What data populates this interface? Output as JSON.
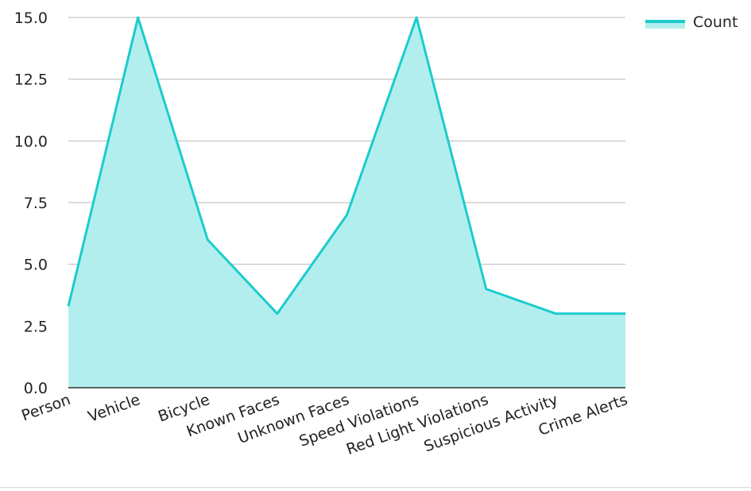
{
  "chart_data": {
    "type": "area",
    "categories": [
      "Person",
      "Vehicle",
      "Bicycle",
      "Known Faces",
      "Unknown Faces",
      "Speed Violations",
      "Red Light Violations",
      "Suspicious Activity",
      "Crime Alerts"
    ],
    "series": [
      {
        "name": "Count",
        "values": [
          3.3,
          15,
          6,
          3,
          7,
          15,
          4,
          3,
          3
        ]
      }
    ],
    "ylim": [
      0,
      15
    ],
    "yticks": [
      "0.0",
      "2.5",
      "5.0",
      "7.5",
      "10.0",
      "12.5",
      "15.0"
    ],
    "grid": true,
    "legend_position": "top-right",
    "colors": {
      "line": "#1ccccc",
      "fill": "#b3eeee",
      "grid": "#b8b8b8",
      "axis": "#333333"
    }
  }
}
